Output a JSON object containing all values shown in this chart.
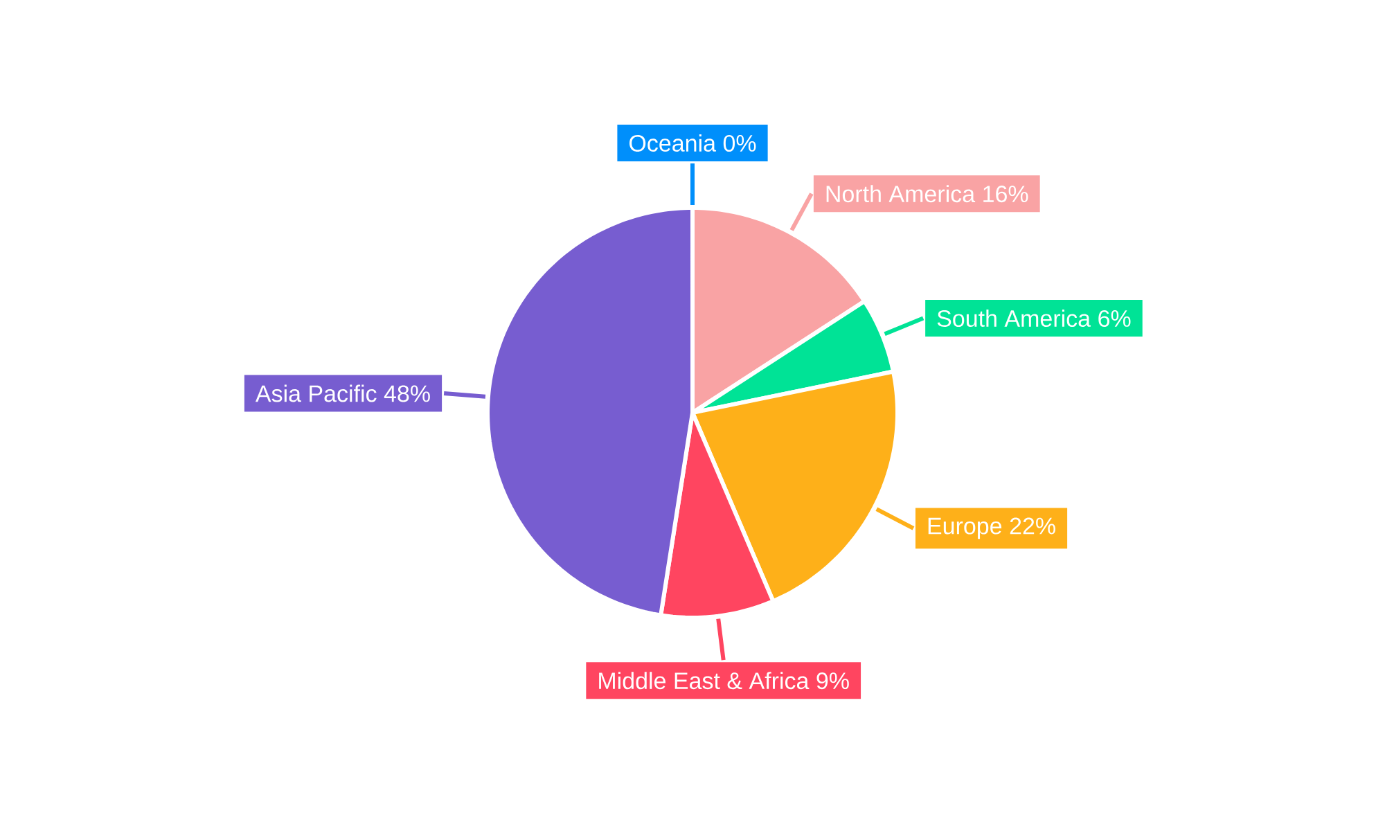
{
  "chart_data": {
    "type": "pie",
    "categories": [
      "Oceania",
      "North America",
      "South America",
      "Europe",
      "Middle East & Africa",
      "Asia Pacific"
    ],
    "values": [
      0,
      16,
      6,
      22,
      9,
      48
    ],
    "value_labels": [
      "0%",
      "16%",
      "6%",
      "22%",
      "9%",
      "48%"
    ],
    "colors": [
      "#008ffb",
      "#f9a3a4",
      "#00e396",
      "#feb019",
      "#ff4560",
      "#775dd0"
    ]
  }
}
